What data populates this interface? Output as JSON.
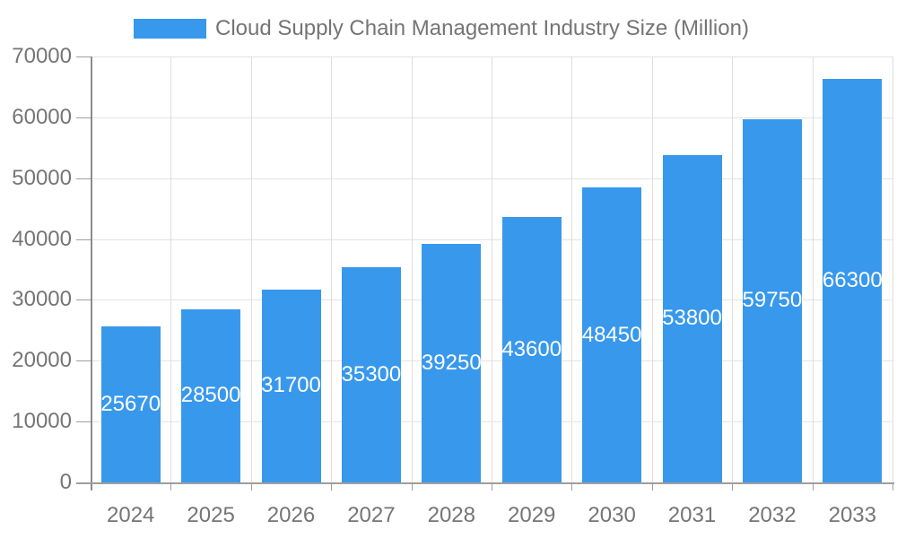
{
  "chart_data": {
    "type": "bar",
    "title": "Cloud Supply Chain Management Industry Size (Million)",
    "legend": [
      {
        "label": "Cloud Supply Chain Management Industry Size (Million)",
        "color": "#3898ec"
      }
    ],
    "categories": [
      "2024",
      "2025",
      "2026",
      "2027",
      "2028",
      "2029",
      "2030",
      "2031",
      "2032",
      "2033"
    ],
    "values": [
      25670,
      28500,
      31700,
      35300,
      39250,
      43600,
      48450,
      53800,
      59750,
      66300
    ],
    "bar_value_labels": [
      "25670",
      "28500",
      "31700",
      "35300",
      "39250",
      "43600",
      "48450",
      "53800",
      "59750",
      "66300"
    ],
    "xlabel": "",
    "ylabel": "",
    "ylim": [
      0,
      70000
    ],
    "ytick_step": 10000,
    "yticks": [
      0,
      10000,
      20000,
      30000,
      40000,
      50000,
      60000,
      70000
    ],
    "ytick_labels": [
      "0",
      "10000",
      "20000",
      "30000",
      "40000",
      "50000",
      "60000",
      "70000"
    ],
    "grid": true,
    "legend_position": "top",
    "bar_color": "#3898ec",
    "bar_label_color": "#ffffff",
    "axis_text_color": "#757575",
    "gridline_color": "#e3e3e3",
    "axis_line_color": "#8c8c8c",
    "baseline_color": "#9e9e9e",
    "background_color": "#ffffff"
  }
}
